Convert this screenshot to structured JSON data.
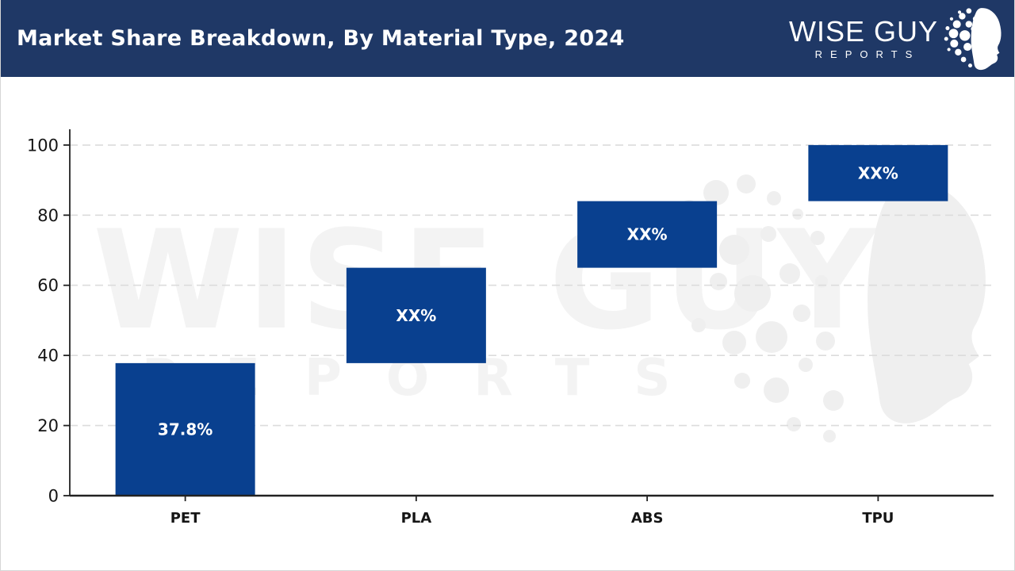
{
  "header": {
    "title": "Market Share Breakdown, By Material Type, 2024",
    "background_color": "#1f3866",
    "logo": {
      "line1": "WISE GUY",
      "line2": "REPORTS"
    }
  },
  "watermark": {
    "line1": "WISE GUY",
    "line2": "REPORTS"
  },
  "chart_data": {
    "type": "bar",
    "subtype": "waterfall",
    "title": "Market Share Breakdown, By Material Type, 2024",
    "categories": [
      "PET",
      "PLA",
      "ABS",
      "TPU"
    ],
    "bars": [
      {
        "category": "PET",
        "start": 0,
        "end": 37.8,
        "label": "37.8%"
      },
      {
        "category": "PLA",
        "start": 37.8,
        "end": 65,
        "label": "XX%"
      },
      {
        "category": "ABS",
        "start": 65,
        "end": 84,
        "label": "XX%"
      },
      {
        "category": "TPU",
        "start": 84,
        "end": 100,
        "label": "XX%"
      }
    ],
    "yticks": [
      0,
      20,
      40,
      60,
      80,
      100
    ],
    "ylim": [
      0,
      104.5
    ],
    "xlabel": "",
    "ylabel": "",
    "grid": "horizontal-dashed",
    "legend": "none",
    "bar_color": "#09408f",
    "bar_label_color": "#ffffff",
    "axis_color": "#222222",
    "gridline_color": "#dcdcdc"
  }
}
